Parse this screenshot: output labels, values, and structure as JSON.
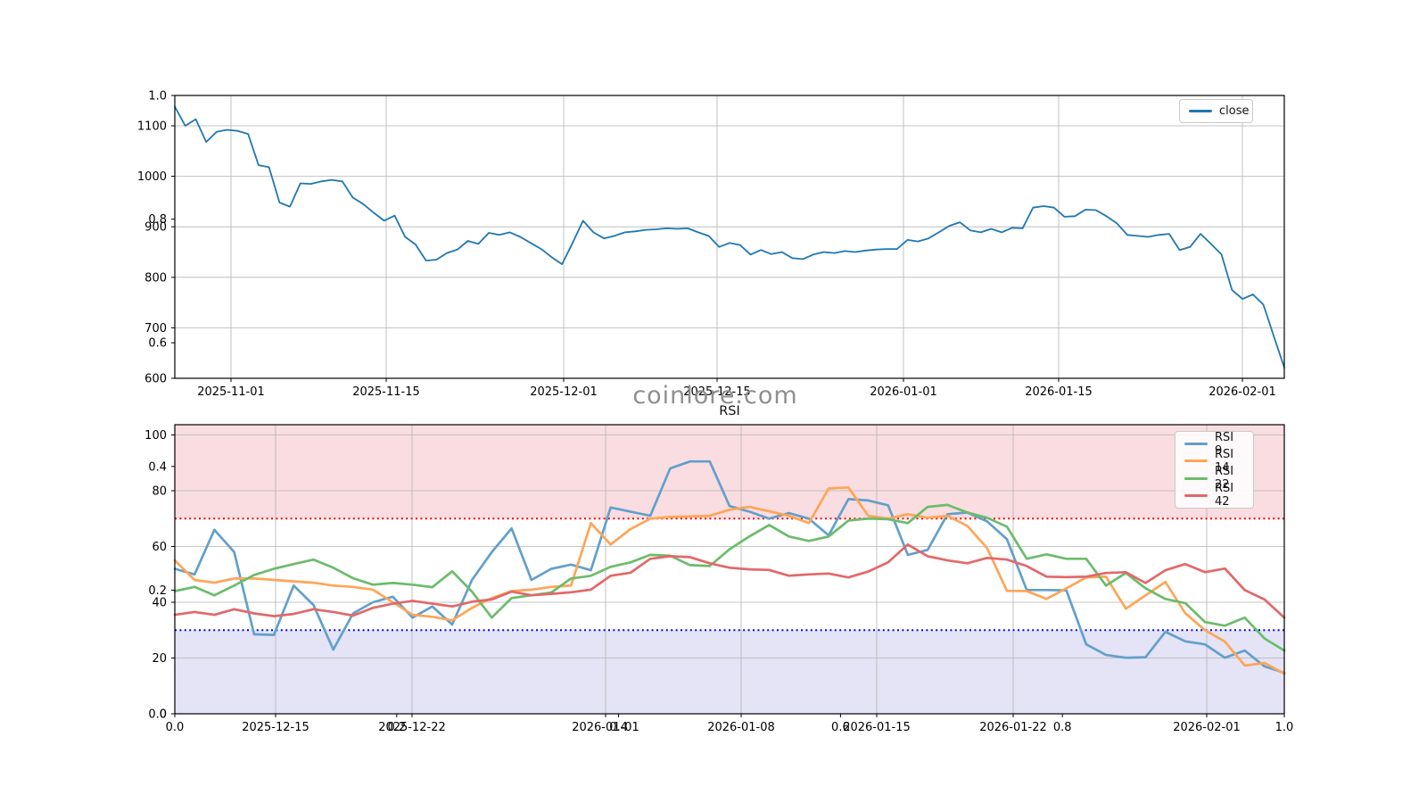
{
  "watermark": "coinlore.com",
  "overlay_axis": {
    "y_tick_labels": [
      "1.0",
      "0.8",
      "0.6",
      "0.4",
      "0.2",
      "0.0"
    ],
    "x_tick_labels": [
      "0.0",
      "0.2",
      "0.4",
      "0.6",
      "0.8",
      "1.0"
    ]
  },
  "style": {
    "grid_color": "#b3b3b3",
    "frame_color": "#000000",
    "overbought_band_color": "#f9dde1",
    "oversold_band_color": "#e4e4f6",
    "overbought_line_color": "#ff0000",
    "oversold_line_color": "#0000ff",
    "tick_label_color": "#000000"
  },
  "chart_data": [
    {
      "type": "line",
      "name": "price",
      "title": "",
      "legend": [
        "close"
      ],
      "legend_position": "upper right",
      "grid": true,
      "x_tick_labels": [
        "2025-11-01",
        "2025-11-15",
        "2025-12-01",
        "2025-12-15",
        "2026-01-01",
        "2026-01-15",
        "2026-02-01"
      ],
      "y_tick_labels": [
        "1100",
        "1000",
        "900",
        "800",
        "700",
        "600"
      ],
      "y_ticks": [
        1100,
        1000,
        900,
        800,
        700,
        600
      ],
      "ylim": [
        600,
        1160
      ],
      "series": [
        {
          "name": "close",
          "color": "#1f77b4",
          "values": [
            1138,
            1100,
            1113,
            1068,
            1088,
            1092,
            1090,
            1084,
            1022,
            1018,
            948,
            940,
            986,
            985,
            990,
            993,
            990,
            958,
            945,
            928,
            912,
            922,
            880,
            865,
            833,
            835,
            848,
            855,
            872,
            866,
            888,
            884,
            889,
            880,
            868,
            856,
            840,
            826,
            868,
            912,
            889,
            877,
            882,
            889,
            891,
            894,
            895,
            897,
            896,
            897,
            889,
            882,
            860,
            868,
            864,
            845,
            854,
            846,
            850,
            838,
            836,
            845,
            850,
            848,
            852,
            850,
            853,
            855,
            856,
            856,
            874,
            871,
            877,
            889,
            902,
            909,
            893,
            889,
            896,
            889,
            898,
            897,
            938,
            941,
            938,
            920,
            921,
            934,
            933,
            921,
            907,
            884,
            882,
            880,
            884,
            886,
            854,
            860,
            886,
            866,
            845,
            775,
            757,
            766,
            746,
            683,
            621
          ]
        }
      ]
    },
    {
      "type": "line",
      "name": "rsi",
      "title": "RSI",
      "legend_position": "upper right",
      "grid": true,
      "x_tick_labels": [
        "2025-12-15",
        "2025-12-22",
        "2026-01-01",
        "2026-01-08",
        "2026-01-15",
        "2026-01-22",
        "2026-02-01"
      ],
      "y_tick_labels": [
        "100",
        "80",
        "60",
        "40",
        "20",
        "0"
      ],
      "y_ticks": [
        100,
        80,
        60,
        40,
        20,
        0
      ],
      "ylim": [
        0,
        103.6
      ],
      "overbought_level": 70,
      "oversold_level": 30,
      "series": [
        {
          "name": "RSI 9",
          "color": "#62a0cb",
          "values": [
            52,
            50,
            66,
            58,
            28.5,
            28.3,
            46,
            39,
            23,
            36,
            40,
            42,
            34.5,
            38.5,
            32,
            48,
            58,
            66.5,
            48,
            52,
            53.5,
            51.5,
            74,
            72.5,
            71,
            88,
            90.5,
            90.5,
            74.5,
            72.5,
            70,
            72,
            70,
            64,
            77,
            76.5,
            74.8,
            57,
            58.8,
            71.6,
            72.2,
            69,
            62.6,
            44.4,
            44.4,
            44.3,
            24.9,
            21.1,
            20.1,
            20.3,
            29.4,
            26,
            24.9,
            20.1,
            22.7,
            17,
            14.7
          ]
        },
        {
          "name": "RSI 14",
          "color": "#ffa556",
          "values": [
            55,
            48,
            47,
            48.5,
            48.5,
            48,
            47.5,
            47,
            46,
            45.5,
            44.5,
            40,
            35.5,
            34.8,
            33.5,
            38,
            41.5,
            44,
            44.5,
            45.5,
            46,
            68.4,
            60.7,
            66.2,
            70,
            70.6,
            70.8,
            71,
            73.2,
            74.2,
            72.6,
            71,
            68.4,
            80.8,
            81.2,
            71,
            70,
            71.6,
            70.3,
            71,
            67.4,
            59.4,
            44.1,
            44,
            41.2,
            45,
            48.9,
            49.2,
            37.7,
            42.5,
            47.3,
            36.1,
            30,
            25.9,
            17.3,
            18.2,
            14.4
          ]
        },
        {
          "name": "RSI 22",
          "color": "#6bbc6b",
          "values": [
            44,
            45.5,
            42.5,
            46,
            49.8,
            52,
            53.7,
            55.3,
            52.4,
            48.6,
            46.3,
            46.9,
            46.3,
            45.4,
            51.1,
            43.8,
            34.5,
            41.5,
            42.5,
            43.5,
            48.5,
            49.5,
            52.7,
            54.3,
            57,
            56.7,
            53.3,
            53,
            59,
            63.6,
            67.7,
            63.6,
            62,
            63.6,
            69.3,
            70,
            69.8,
            68.4,
            74.2,
            74.9,
            72.2,
            70.3,
            67.1,
            55.6,
            57.2,
            55.6,
            55.6,
            46,
            50.5,
            45,
            41.2,
            39.7,
            32.9,
            31.6,
            34.5,
            27,
            22.7
          ]
        },
        {
          "name": "RSI 42",
          "color": "#e26869",
          "values": [
            35.5,
            36.5,
            35.5,
            37.5,
            36,
            35,
            35.8,
            37.5,
            36.5,
            35.2,
            38,
            39.5,
            40.5,
            39.5,
            38.5,
            40.2,
            41,
            43.8,
            42.5,
            43,
            43.6,
            44.5,
            49.5,
            50.6,
            55.6,
            56.5,
            56.2,
            54,
            52.4,
            51.8,
            51.6,
            49.5,
            50,
            50.3,
            48.9,
            51,
            54.3,
            60.7,
            56.5,
            55,
            54,
            55.9,
            55.3,
            53,
            49.2,
            49,
            49.2,
            50.5,
            50.8,
            46.9,
            51.5,
            53.7,
            50.8,
            52.1,
            44.4,
            41,
            34.5
          ]
        }
      ]
    }
  ]
}
